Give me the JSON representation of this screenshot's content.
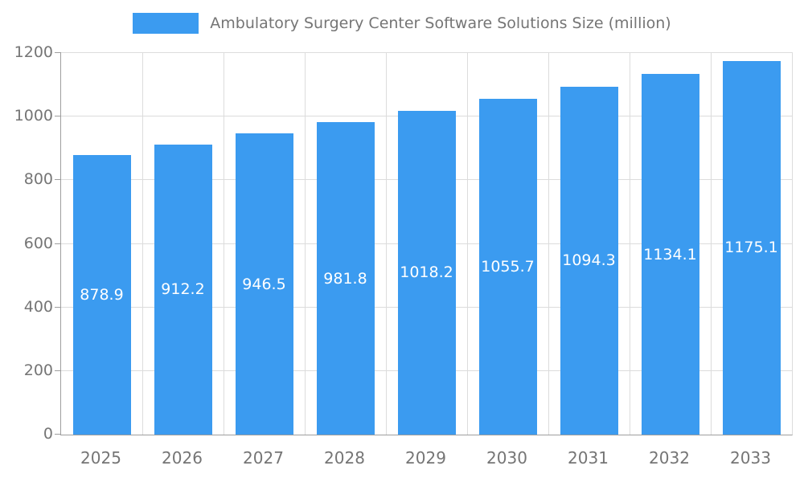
{
  "chart_data": {
    "type": "bar",
    "title": "Ambulatory Surgery Center Software Solutions Size (million)",
    "categories": [
      "2025",
      "2026",
      "2027",
      "2028",
      "2029",
      "2030",
      "2031",
      "2032",
      "2033"
    ],
    "values": [
      878.9,
      912.2,
      946.5,
      981.8,
      1018.2,
      1055.7,
      1094.3,
      1134.1,
      1175.1
    ],
    "xlabel": "",
    "ylabel": "",
    "ylim": [
      0,
      1200
    ],
    "yticks": [
      0,
      200,
      400,
      600,
      800,
      1000,
      1200
    ],
    "grid": true,
    "legend_position": "top",
    "colors": {
      "bar": "#3b9bf0",
      "value_label": "#ffffff",
      "axis_text": "#757575",
      "gridline": "#dcdcdc",
      "axis_line": "#9e9e9e"
    }
  }
}
